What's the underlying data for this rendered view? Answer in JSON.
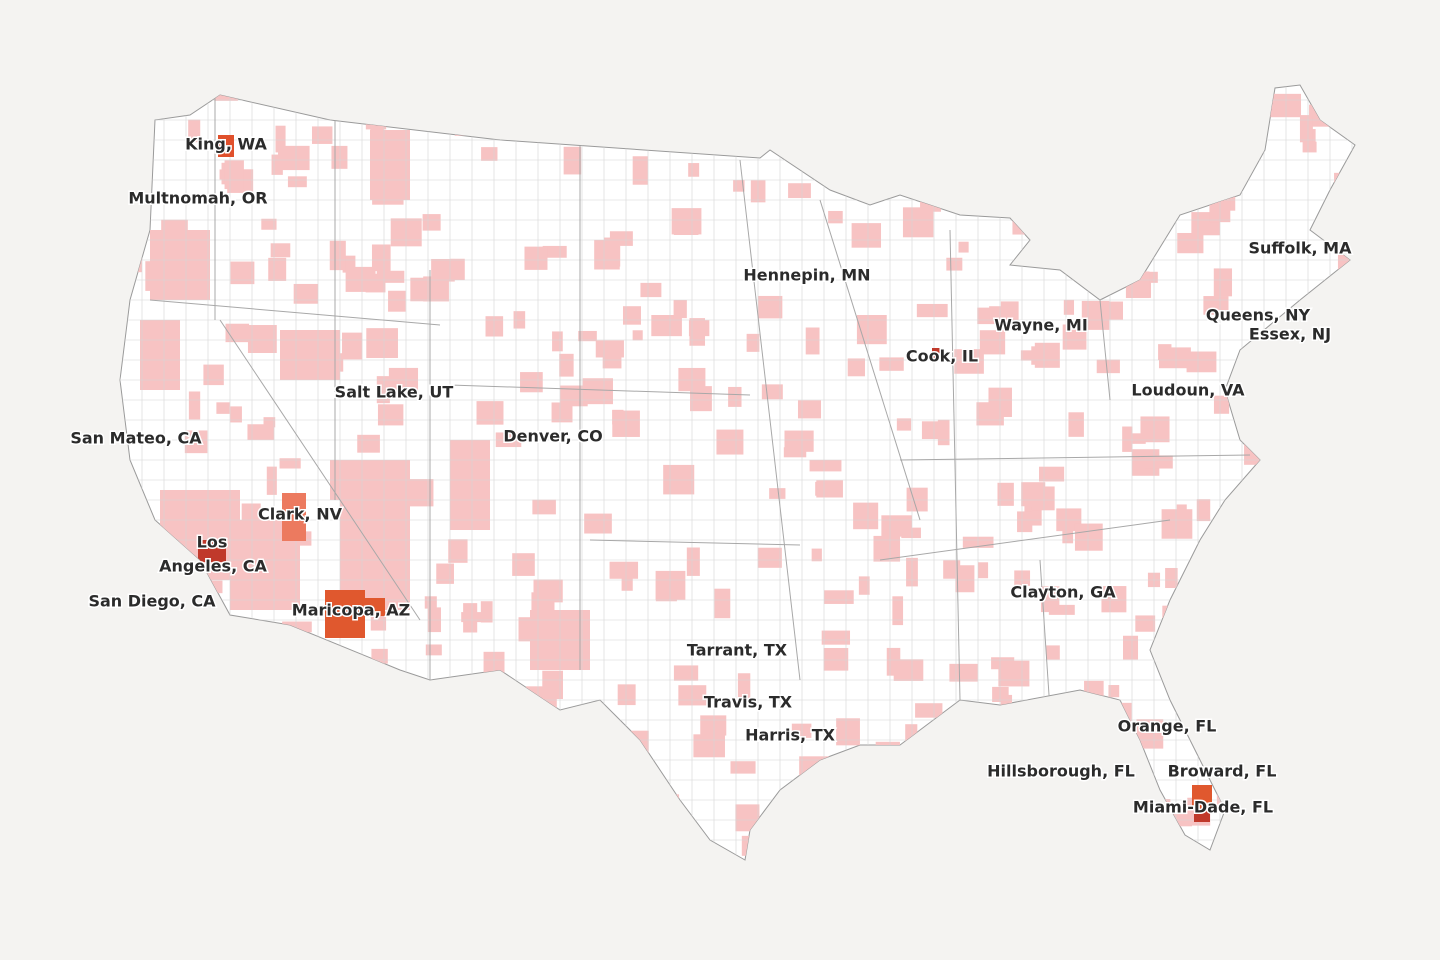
{
  "labels": [
    "King, WA",
    "Multnomah, OR",
    "San Mateo, CA",
    "Los",
    "Angeles, CA",
    "San Diego, CA",
    "Clark, NV",
    "Salt Lake, UT",
    "Denver, CO",
    "Maricopa, AZ",
    "Hennepin, MN",
    "Cook, IL",
    "Wayne, MI",
    "Suffolk, MA",
    "Queens, NY",
    "Essex, NJ",
    "Loudoun, VA",
    "Tarrant, TX",
    "Travis, TX",
    "Harris, TX",
    "Clayton, GA",
    "Orange, FL",
    "Hillsborough, FL",
    "Broward, FL",
    "Miami-Dade, FL"
  ]
}
